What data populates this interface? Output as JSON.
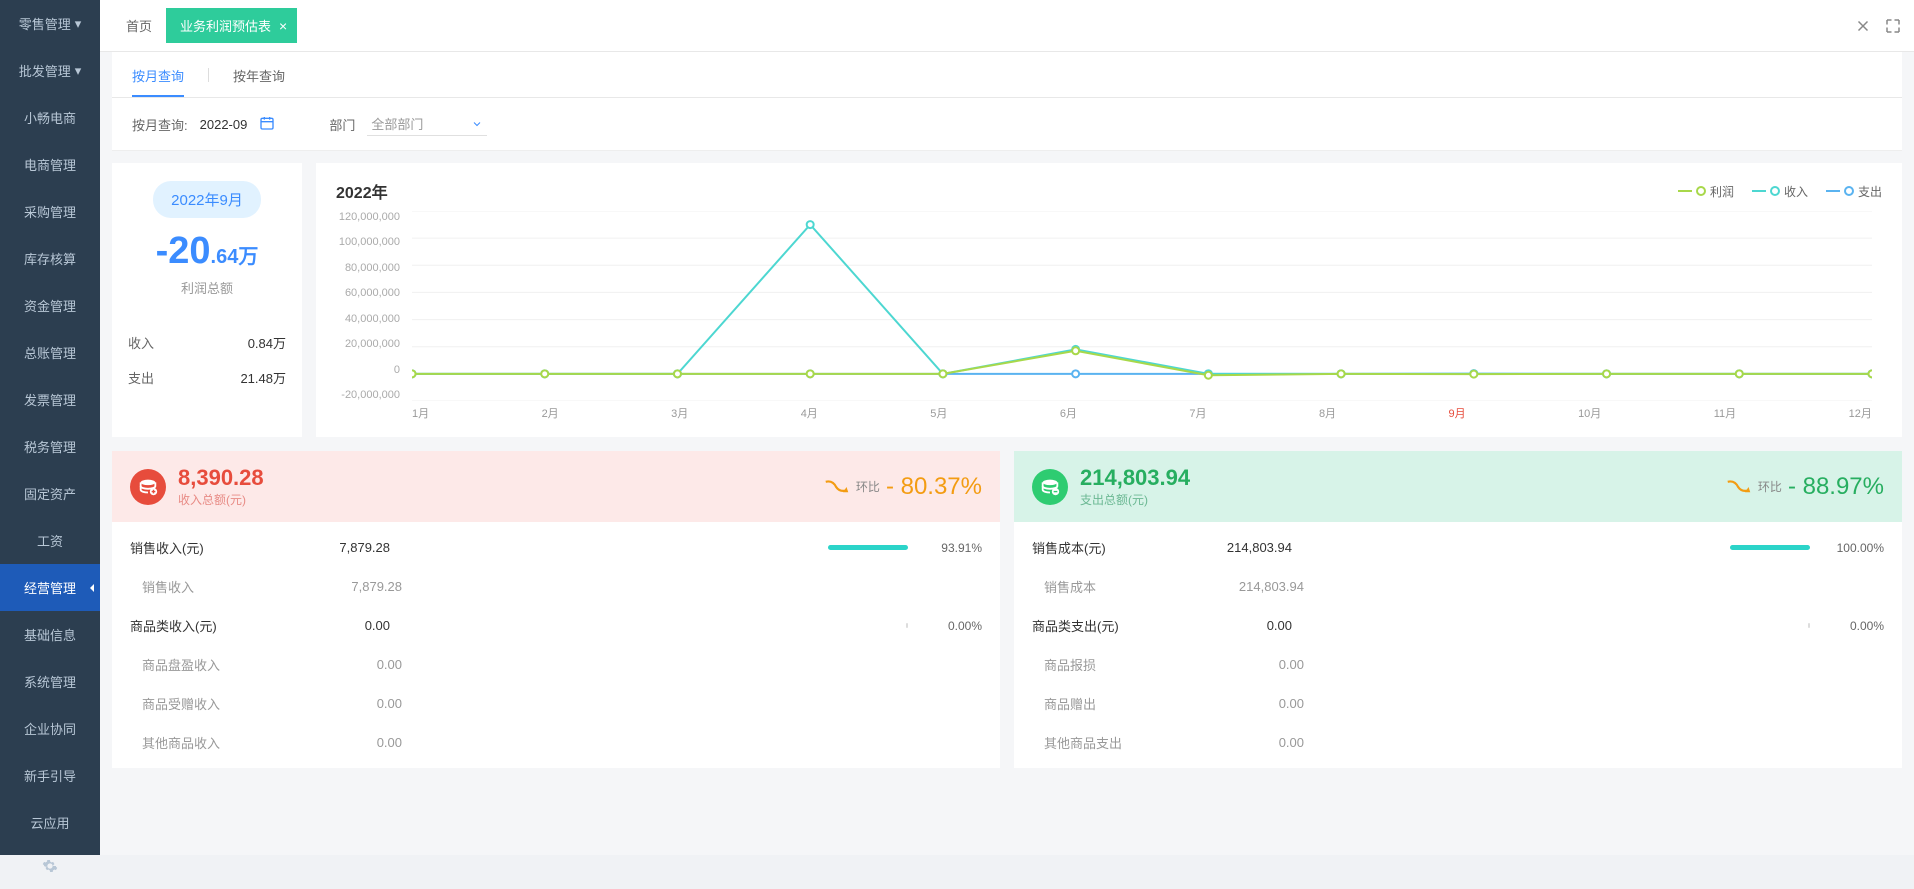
{
  "sidebar": {
    "items": [
      {
        "label": "零售管理",
        "expand": true
      },
      {
        "label": "批发管理",
        "expand": true
      },
      {
        "label": "小畅电商"
      },
      {
        "label": "电商管理"
      },
      {
        "label": "采购管理"
      },
      {
        "label": "库存核算"
      },
      {
        "label": "资金管理"
      },
      {
        "label": "总账管理"
      },
      {
        "label": "发票管理"
      },
      {
        "label": "税务管理"
      },
      {
        "label": "固定资产"
      },
      {
        "label": "工资"
      },
      {
        "label": "经营管理",
        "active": true
      },
      {
        "label": "基础信息"
      },
      {
        "label": "系统管理"
      },
      {
        "label": "企业协同"
      },
      {
        "label": "新手引导"
      },
      {
        "label": "云应用"
      }
    ]
  },
  "tabs": {
    "home": "首页",
    "active": "业务利润预估表"
  },
  "query": {
    "monthly": "按月查询",
    "yearly": "按年查询",
    "month_label": "按月查询:",
    "month_value": "2022-09",
    "dept_label": "部门",
    "dept_value": "全部部门"
  },
  "summary": {
    "period": "2022年9月",
    "profit_main": "-20",
    "profit_dec": ".64万",
    "profit_label": "利润总额",
    "income_label": "收入",
    "income_value": "0.84万",
    "expense_label": "支出",
    "expense_value": "21.48万"
  },
  "chart": {
    "title": "2022年",
    "legend": {
      "profit": "利润",
      "income": "收入",
      "expense": "支出"
    },
    "colors": {
      "profit": "#a8d84a",
      "income": "#4dd7d1",
      "expense": "#5ab3f0"
    },
    "ylabels": [
      "120,000,000",
      "100,000,000",
      "80,000,000",
      "60,000,000",
      "40,000,000",
      "20,000,000",
      "0",
      "-20,000,000"
    ],
    "ymin": -20000000,
    "ymax": 120000000,
    "xlabels": [
      "1月",
      "2月",
      "3月",
      "4月",
      "5月",
      "6月",
      "7月",
      "8月",
      "9月",
      "10月",
      "11月",
      "12月"
    ],
    "current_month_idx": 8,
    "series": {
      "profit": [
        0,
        0,
        0,
        0,
        0,
        17000000,
        -1000000,
        0,
        -200000,
        0,
        0,
        0
      ],
      "income": [
        0,
        0,
        0,
        110000000,
        0,
        18000000,
        0,
        0,
        8000,
        0,
        0,
        0
      ],
      "expense": [
        0,
        0,
        0,
        0,
        0,
        0,
        0,
        0,
        200000,
        0,
        0,
        0
      ]
    }
  },
  "income": {
    "amount": "8,390.28",
    "sublabel": "收入总额(元)",
    "delta_label": "环比",
    "delta_value": "- 80.37%",
    "rows": [
      {
        "label": "销售收入(元)",
        "value": "7,879.28",
        "pct": "93.91%",
        "bar_pct": 94,
        "bar_color": "#2bd4c9"
      },
      {
        "label": "销售收入",
        "value": "7,879.28",
        "sub": true
      },
      {
        "label": "商品类收入(元)",
        "value": "0.00",
        "pct": "0.00%",
        "bar_pct": 0,
        "bar_color": "#ddd"
      },
      {
        "label": "商品盘盈收入",
        "value": "0.00",
        "sub": true
      },
      {
        "label": "商品受赠收入",
        "value": "0.00",
        "sub": true
      },
      {
        "label": "其他商品收入",
        "value": "0.00",
        "sub": true
      }
    ]
  },
  "expense": {
    "amount": "214,803.94",
    "sublabel": "支出总额(元)",
    "delta_label": "环比",
    "delta_value": "- 88.97%",
    "rows": [
      {
        "label": "销售成本(元)",
        "value": "214,803.94",
        "pct": "100.00%",
        "bar_pct": 100,
        "bar_color": "#2bd4c9"
      },
      {
        "label": "销售成本",
        "value": "214,803.94",
        "sub": true
      },
      {
        "label": "商品类支出(元)",
        "value": "0.00",
        "pct": "0.00%",
        "bar_pct": 0,
        "bar_color": "#ddd"
      },
      {
        "label": "商品报损",
        "value": "0.00",
        "sub": true
      },
      {
        "label": "商品赠出",
        "value": "0.00",
        "sub": true
      },
      {
        "label": "其他商品支出",
        "value": "0.00",
        "sub": true
      }
    ]
  }
}
